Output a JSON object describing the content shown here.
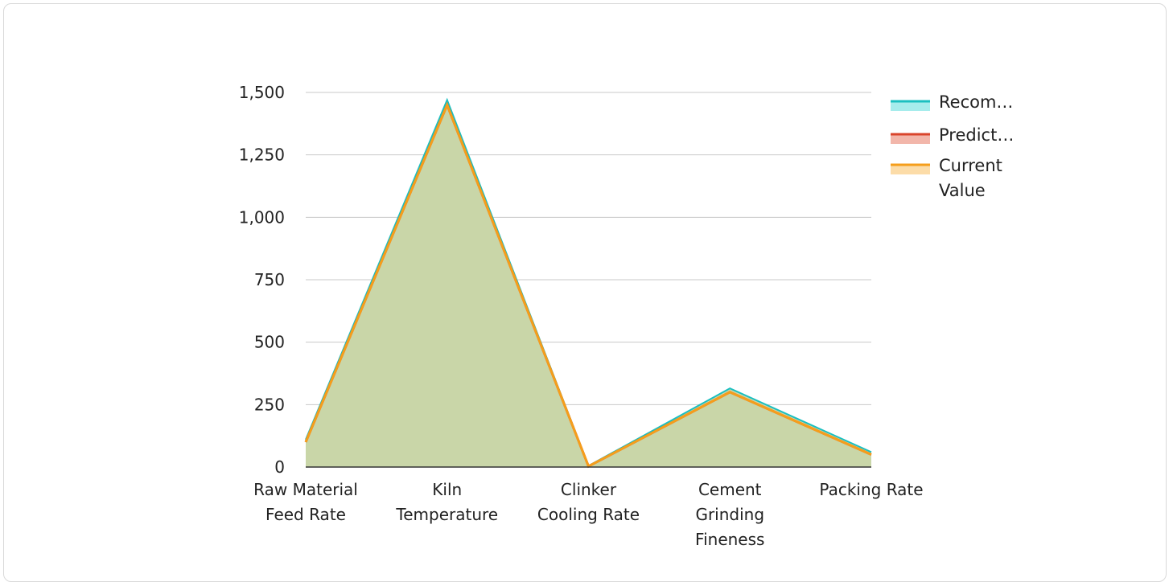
{
  "chart_data": {
    "type": "area",
    "title": "",
    "xlabel": "",
    "ylabel": "",
    "categories": [
      [
        "Raw Material",
        "Feed Rate"
      ],
      [
        "Kiln",
        "Temperature"
      ],
      [
        "Clinker",
        "Cooling Rate"
      ],
      [
        "Cement",
        "Grinding",
        "Fineness"
      ],
      [
        "Packing Rate"
      ]
    ],
    "ylim": [
      0,
      1500
    ],
    "yticks": [
      {
        "value": 0,
        "label": "0"
      },
      {
        "value": 250,
        "label": "250"
      },
      {
        "value": 500,
        "label": "500"
      },
      {
        "value": 750,
        "label": "750"
      },
      {
        "value": 1000,
        "label": "1,000"
      },
      {
        "value": 1250,
        "label": "1,250"
      },
      {
        "value": 1500,
        "label": "1,500"
      }
    ],
    "grid": true,
    "legend_position": "right",
    "series": [
      {
        "name": "Recom…",
        "color": "#1bbfc0",
        "fill": "#a6ecec",
        "values": [
          110,
          1470,
          5,
          315,
          60
        ]
      },
      {
        "name": "Predict…",
        "color": "#d9442b",
        "fill": "#f2b6aa",
        "values": [
          100,
          1450,
          3,
          300,
          50
        ]
      },
      {
        "name": [
          "Current",
          "Value"
        ],
        "color": "#f59e1b",
        "fill": "#fcdca8",
        "values": [
          100,
          1450,
          3,
          300,
          50
        ]
      }
    ],
    "area_fill": "#c9d6a8"
  }
}
